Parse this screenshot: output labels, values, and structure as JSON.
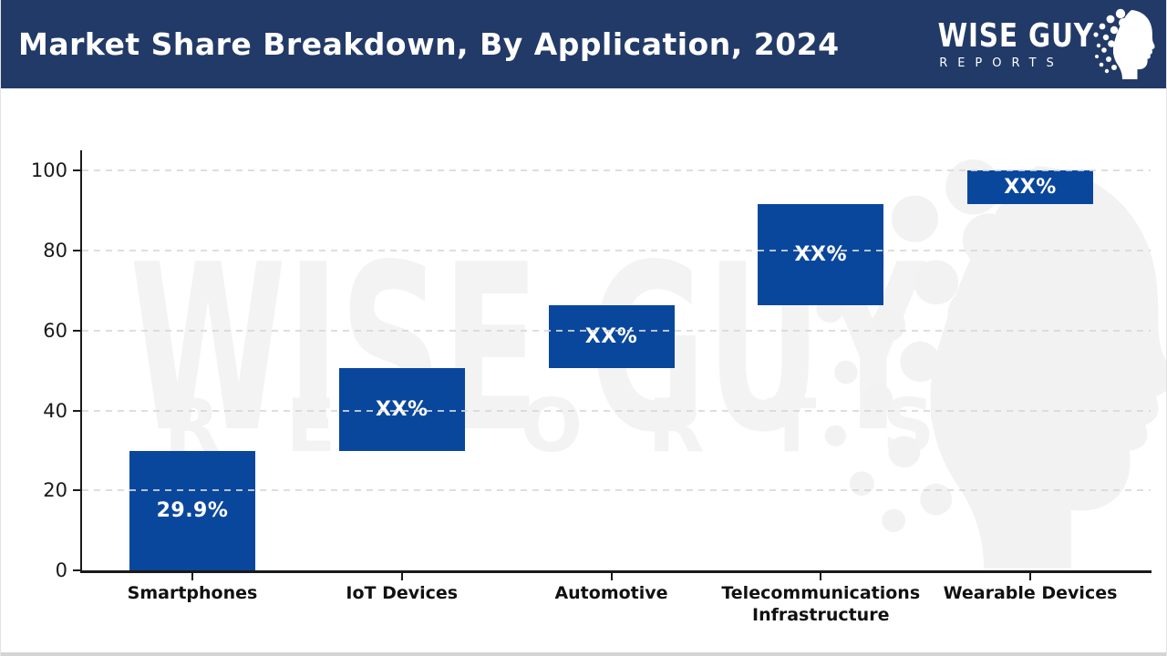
{
  "header": {
    "title": "Market Share Breakdown, By Application, 2024",
    "logo": {
      "name": "WISE GUY",
      "sub": "REPORTS"
    }
  },
  "watermark": {
    "name": "WISE GUY",
    "sub": "REPORTS"
  },
  "chart_data": {
    "type": "bar",
    "subtype": "waterfall",
    "title": "Market Share Breakdown, By Application, 2024",
    "xlabel": "",
    "ylabel": "",
    "ylim": [
      0,
      105
    ],
    "yticks": [
      0,
      20,
      40,
      60,
      80,
      100
    ],
    "grid": "horizontal-dashed",
    "legend": "none",
    "bar_color": "#09479D",
    "categories": [
      "Smartphones",
      "IoT Devices",
      "Automotive",
      "Telecommunications Infrastructure",
      "Wearable Devices"
    ],
    "category_lines": [
      [
        "Smartphones"
      ],
      [
        "IoT Devices"
      ],
      [
        "Automotive"
      ],
      [
        "Telecommunications",
        "Infrastructure"
      ],
      [
        "Wearable Devices"
      ]
    ],
    "series": [
      {
        "name": "Market share (%)",
        "segments": [
          {
            "category": "Smartphones",
            "start": 0,
            "end": 29.9,
            "value": 29.9,
            "label": "29.9%"
          },
          {
            "category": "IoT Devices",
            "start": 29.9,
            "end": 50.6,
            "value": 20.7,
            "label": "XX%"
          },
          {
            "category": "Automotive",
            "start": 50.6,
            "end": 66.3,
            "value": 15.7,
            "label": "XX%"
          },
          {
            "category": "Telecommunications Infrastructure",
            "start": 66.3,
            "end": 91.6,
            "value": 25.3,
            "label": "XX%"
          },
          {
            "category": "Wearable Devices",
            "start": 91.6,
            "end": 100.0,
            "value": 8.4,
            "label": "XX%"
          }
        ]
      }
    ]
  }
}
